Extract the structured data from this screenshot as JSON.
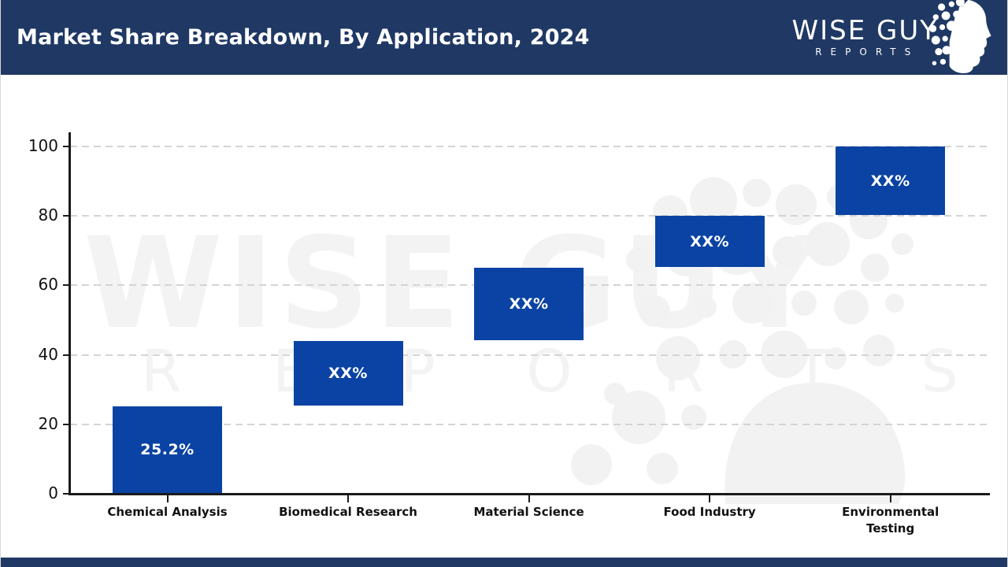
{
  "header": {
    "title": "Market Share Breakdown, By Application, 2024",
    "logo": {
      "line1": "WISE GUY",
      "line2": "REPORTS"
    }
  },
  "watermark": {
    "line1": "WISE GUY",
    "line2": "R E P O R T S"
  },
  "footer": {},
  "colors": {
    "header_bg": "#1f3864",
    "footer_bg": "#1f3864",
    "bar": "#0a43a3",
    "bar_label": "#ffffff",
    "grid": "#d4d4d4",
    "axis": "#1a1a1a",
    "watermark": "#f3f3f3"
  },
  "chart_data": {
    "type": "bar",
    "subtype": "waterfall-floating-bars",
    "title": "Market Share Breakdown, By Application, 2024",
    "categories": [
      "Chemical Analysis",
      "Biomedical Research",
      "Material Science",
      "Food Industry",
      "Environmental Testing"
    ],
    "segments": [
      {
        "category": "Chemical Analysis",
        "start": 0,
        "end": 25.2,
        "value": 25.2,
        "value_label": "25.2%"
      },
      {
        "category": "Biomedical Research",
        "start": 25.2,
        "end": 44,
        "value": 18.8,
        "value_label": "XX%"
      },
      {
        "category": "Material Science",
        "start": 44,
        "end": 65,
        "value": 21,
        "value_label": "XX%"
      },
      {
        "category": "Food Industry",
        "start": 65,
        "end": 80,
        "value": 15,
        "value_label": "XX%"
      },
      {
        "category": "Environmental Testing",
        "start": 80,
        "end": 100,
        "value": 20,
        "value_label": "XX%"
      }
    ],
    "xlabel": "",
    "ylabel": "",
    "ylim": [
      0,
      100
    ],
    "yticks": [
      0,
      20,
      40,
      60,
      80,
      100
    ],
    "grid": "horizontal-dashed",
    "legend": "none",
    "bar_color": "#0a43a3"
  }
}
